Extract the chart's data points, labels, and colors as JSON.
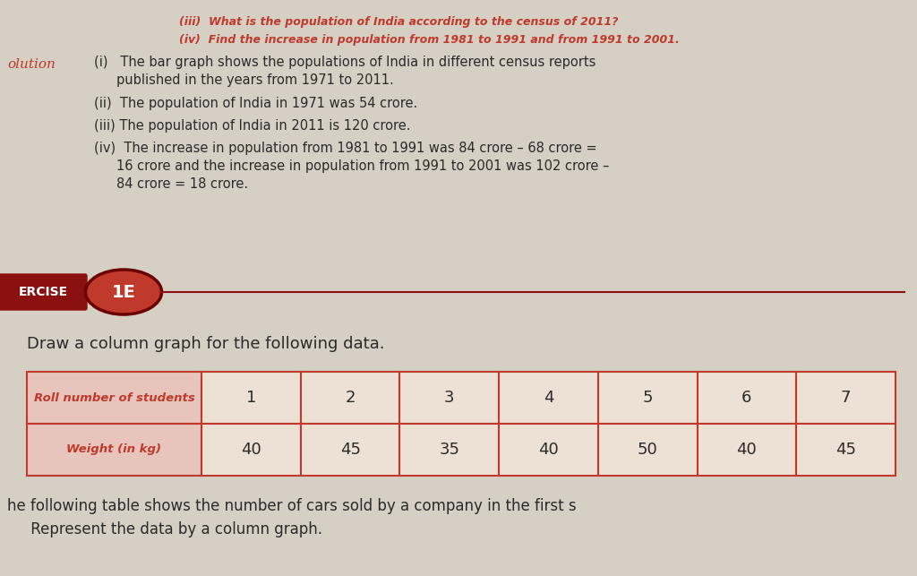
{
  "top_q3": "(iii)  What is the population of India according to the census of 2011?",
  "top_q4": "(iv)  Find the increase in population from 1981 to 1991 and from 1991 to 2001.",
  "solution_label": "olution",
  "sol_i": "(i)   The bar graph shows the populations of India in different census reports\n        published in the years from 1971 to 2011.",
  "sol_ii": "(ii)  The population of India in 1971 was 54 crore.",
  "sol_iii": "(iii) The population of India in 2011 is 120 crore.",
  "sol_iv_line1": "(iv)  The increase in population from 1981 to 1991 was 84 crore – 68 crore =",
  "sol_iv_line2": "       16 crore and the increase in population from 1991 to 2001 was 102 crore –",
  "sol_iv_line3": "       84 crore = 18 crore.",
  "exercise_label": "1E",
  "exercise_section": "ERCISE",
  "exercise_instruction": "Draw a column graph for the following data.",
  "table_header1": "Roll number of students",
  "table_header2": "Weight (in kg)",
  "roll_numbers": [
    1,
    2,
    3,
    4,
    5,
    6,
    7
  ],
  "weights": [
    40,
    45,
    35,
    40,
    50,
    40,
    45
  ],
  "footer_text": "he following table shows the number of cars sold by a company in the first s",
  "footer_text2": "     Represent the data by a column graph.",
  "bg_color": "#d6cfc4",
  "text_color": "#2a2a2a",
  "red_color": "#c0392b",
  "dark_red": "#8b1010",
  "table_header_bg": "#e8c5bc",
  "table_data_bg": "#ede0d4",
  "table_border": "#c0392b"
}
